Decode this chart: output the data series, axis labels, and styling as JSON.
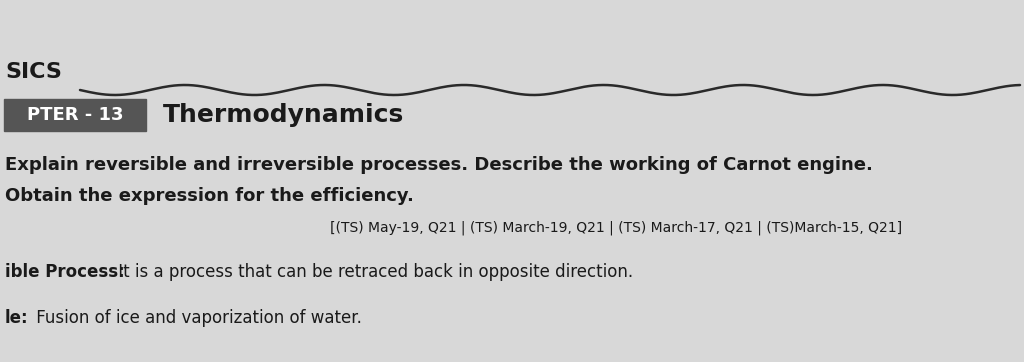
{
  "background_color": "#d8d8d8",
  "wavy_line_color": "#2a2a2a",
  "sics_text": "SICS",
  "chapter_badge_text": "PTER - 13",
  "chapter_title": "Thermodynamics",
  "question_line1": "Explain reversible and irreversible processes. Describe the working of Carnot engine.",
  "question_line2": "Obtain the expression for the efficiency.",
  "reference_text": "[(TS) May-19, Q21 | (TS) March-19, Q21 | (TS) March-17, Q21 | (TS)March-15, Q21]",
  "process_bold": "ible Process:",
  "process_normal": " It is a process that can be retraced back in opposite direction.",
  "example_bold": "le:",
  "example_normal": " Fusion of ice and vaporization of water.",
  "badge_facecolor": "#555555",
  "text_color": "#1a1a1a"
}
